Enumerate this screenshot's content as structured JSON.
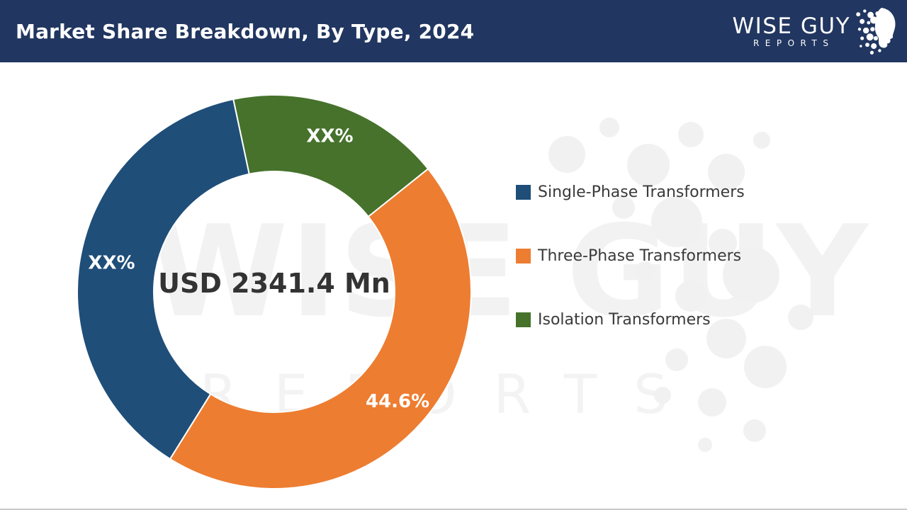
{
  "header": {
    "title": "Market Share Breakdown, By Type, 2024",
    "bg_color": "#213660",
    "logo": {
      "wordmark": "WISE GUY",
      "subtitle": "REPORTS"
    }
  },
  "watermark": {
    "line1": "WISE GUY",
    "line2": "REPORTS"
  },
  "chart_data": {
    "type": "pie",
    "subtype": "donut",
    "title": "Market Share Breakdown, By Type, 2024",
    "center_label": "USD 2341.4 Mn",
    "total_value_usd_mn": 2341.4,
    "start_angle_deg": -12,
    "direction": "clockwise",
    "inner_radius_ratio": 0.61,
    "legend_position": "right",
    "segments": [
      {
        "name": "Single-Phase Transformers",
        "value_pct": 37.8,
        "display_label": "XX%",
        "color": "#1F4E79"
      },
      {
        "name": "Three-Phase Transformers",
        "value_pct": 44.6,
        "display_label": "44.6%",
        "color": "#ED7D31"
      },
      {
        "name": "Isolation Transformers",
        "value_pct": 17.6,
        "display_label": "XX%",
        "color": "#46722B"
      }
    ],
    "draw_order": [
      2,
      1,
      0
    ]
  },
  "legend": {
    "items": [
      {
        "label": "Single-Phase Transformers",
        "color": "#1F4E79"
      },
      {
        "label": "Three-Phase Transformers",
        "color": "#ED7D31"
      },
      {
        "label": "Isolation Transformers",
        "color": "#46722B"
      }
    ]
  }
}
